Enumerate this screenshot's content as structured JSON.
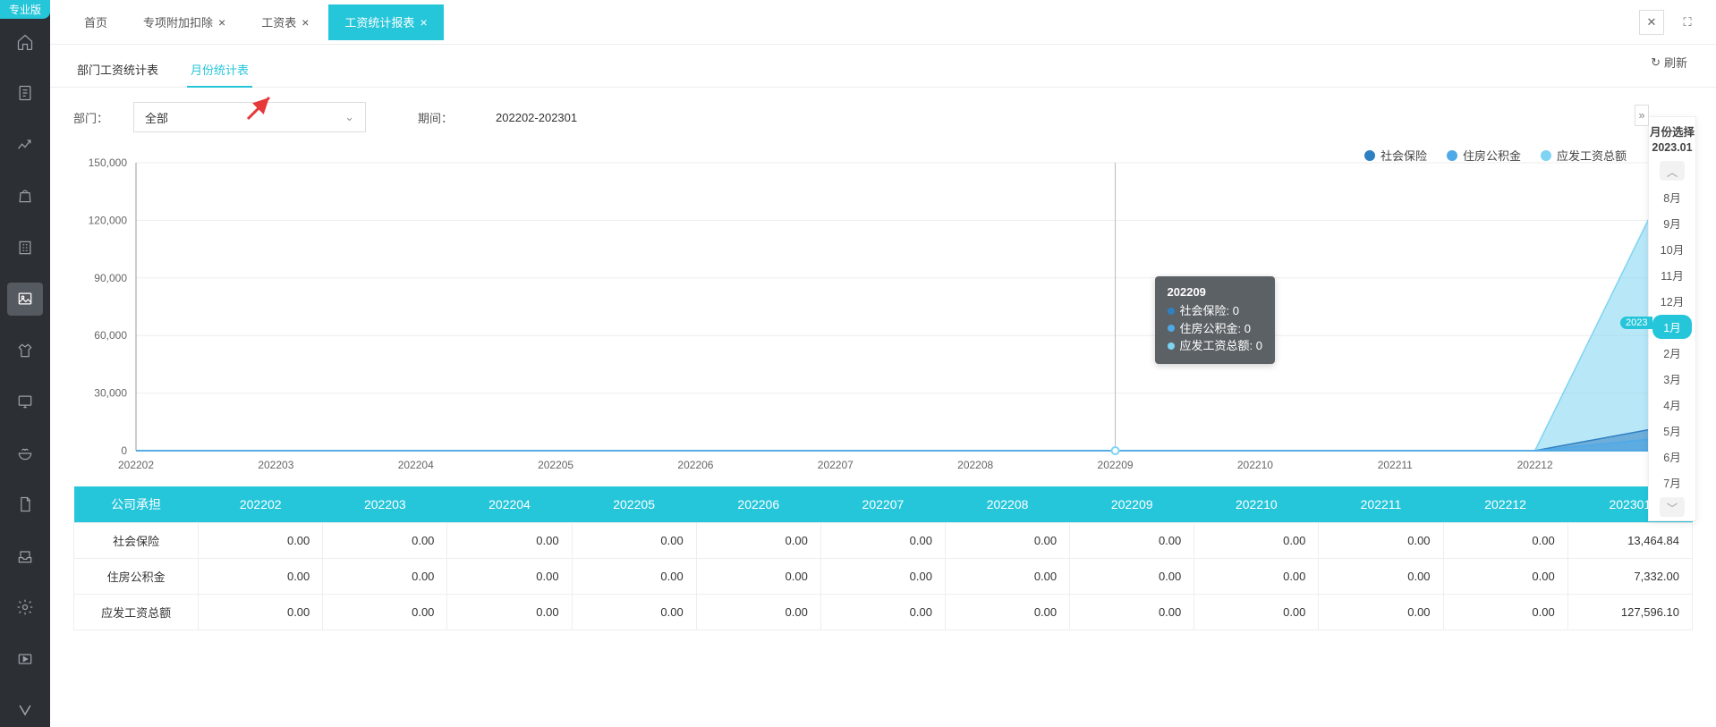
{
  "edition_badge": "专业版",
  "sidebar": {
    "items": [
      {
        "name": "home-icon"
      },
      {
        "name": "ledger-icon"
      },
      {
        "name": "trend-icon"
      },
      {
        "name": "bag-icon"
      },
      {
        "name": "building-icon"
      },
      {
        "name": "image-icon",
        "active": true
      },
      {
        "name": "shirt-icon"
      },
      {
        "name": "display-icon"
      },
      {
        "name": "bowl-icon"
      },
      {
        "name": "doc-icon"
      },
      {
        "name": "tray-icon"
      },
      {
        "name": "gear-icon"
      },
      {
        "name": "play-icon"
      },
      {
        "name": "vee-icon"
      }
    ]
  },
  "tabs": [
    {
      "label": "首页",
      "closable": false
    },
    {
      "label": "专项附加扣除",
      "closable": true
    },
    {
      "label": "工资表",
      "closable": true
    },
    {
      "label": "工资统计报表",
      "closable": true,
      "active": true
    }
  ],
  "subtabs": [
    {
      "label": "部门工资统计表"
    },
    {
      "label": "月份统计表",
      "active": true
    }
  ],
  "refresh_label": "刷新",
  "filters": {
    "dept_label": "部门：",
    "dept_value": "全部",
    "period_label": "期间：",
    "period_value": "202202-202301"
  },
  "chart": {
    "type": "area",
    "y_ticks": [
      0,
      30000,
      60000,
      90000,
      120000,
      150000
    ],
    "y_tick_labels": [
      "0",
      "30,000",
      "60,000",
      "90,000",
      "120,000",
      "150,000"
    ],
    "x_labels": [
      "202202",
      "202203",
      "202204",
      "202205",
      "202206",
      "202207",
      "202208",
      "202209",
      "202210",
      "202211",
      "202212",
      "202301"
    ],
    "series": [
      {
        "name": "社会保险",
        "color": "#2f80c3",
        "values": [
          0,
          0,
          0,
          0,
          0,
          0,
          0,
          0,
          0,
          0,
          0,
          13464.84
        ]
      },
      {
        "name": "住房公积金",
        "color": "#4fa9e6",
        "values": [
          0,
          0,
          0,
          0,
          0,
          0,
          0,
          0,
          0,
          0,
          0,
          7332.0
        ]
      },
      {
        "name": "应发工资总额",
        "color": "#7ed4f2",
        "values": [
          0,
          0,
          0,
          0,
          0,
          0,
          0,
          0,
          0,
          0,
          0,
          148392.94
        ]
      }
    ],
    "background_color": "#ffffff",
    "grid_color": "#eeeeee",
    "axis_color": "#999999",
    "hover_line_color": "#bbbbbb",
    "hover_index": 7,
    "tooltip": {
      "title": "202209",
      "rows": [
        {
          "label": "社会保险",
          "value": 0,
          "color": "#2f80c3"
        },
        {
          "label": "住房公积金",
          "value": 0,
          "color": "#4fa9e6"
        },
        {
          "label": "应发工资总额",
          "value": 0,
          "color": "#7ed4f2"
        }
      ]
    }
  },
  "table": {
    "first_col_header": "公司承担",
    "columns": [
      "202202",
      "202203",
      "202204",
      "202205",
      "202206",
      "202207",
      "202208",
      "202209",
      "202210",
      "202211",
      "202212",
      "202301"
    ],
    "rows": [
      {
        "label": "社会保险",
        "values": [
          "0.00",
          "0.00",
          "0.00",
          "0.00",
          "0.00",
          "0.00",
          "0.00",
          "0.00",
          "0.00",
          "0.00",
          "0.00",
          "13,464.84"
        ]
      },
      {
        "label": "住房公积金",
        "values": [
          "0.00",
          "0.00",
          "0.00",
          "0.00",
          "0.00",
          "0.00",
          "0.00",
          "0.00",
          "0.00",
          "0.00",
          "0.00",
          "7,332.00"
        ]
      },
      {
        "label": "应发工资总额",
        "values": [
          "0.00",
          "0.00",
          "0.00",
          "0.00",
          "0.00",
          "0.00",
          "0.00",
          "0.00",
          "0.00",
          "0.00",
          "0.00",
          "127,596.10"
        ]
      }
    ]
  },
  "month_panel": {
    "title": "月份选择",
    "current": "2023.01",
    "year_badge": "2023",
    "items": [
      "8月",
      "9月",
      "10月",
      "11月",
      "12月",
      "1月",
      "2月",
      "3月",
      "4月",
      "5月",
      "6月",
      "7月"
    ],
    "active_index": 5
  }
}
